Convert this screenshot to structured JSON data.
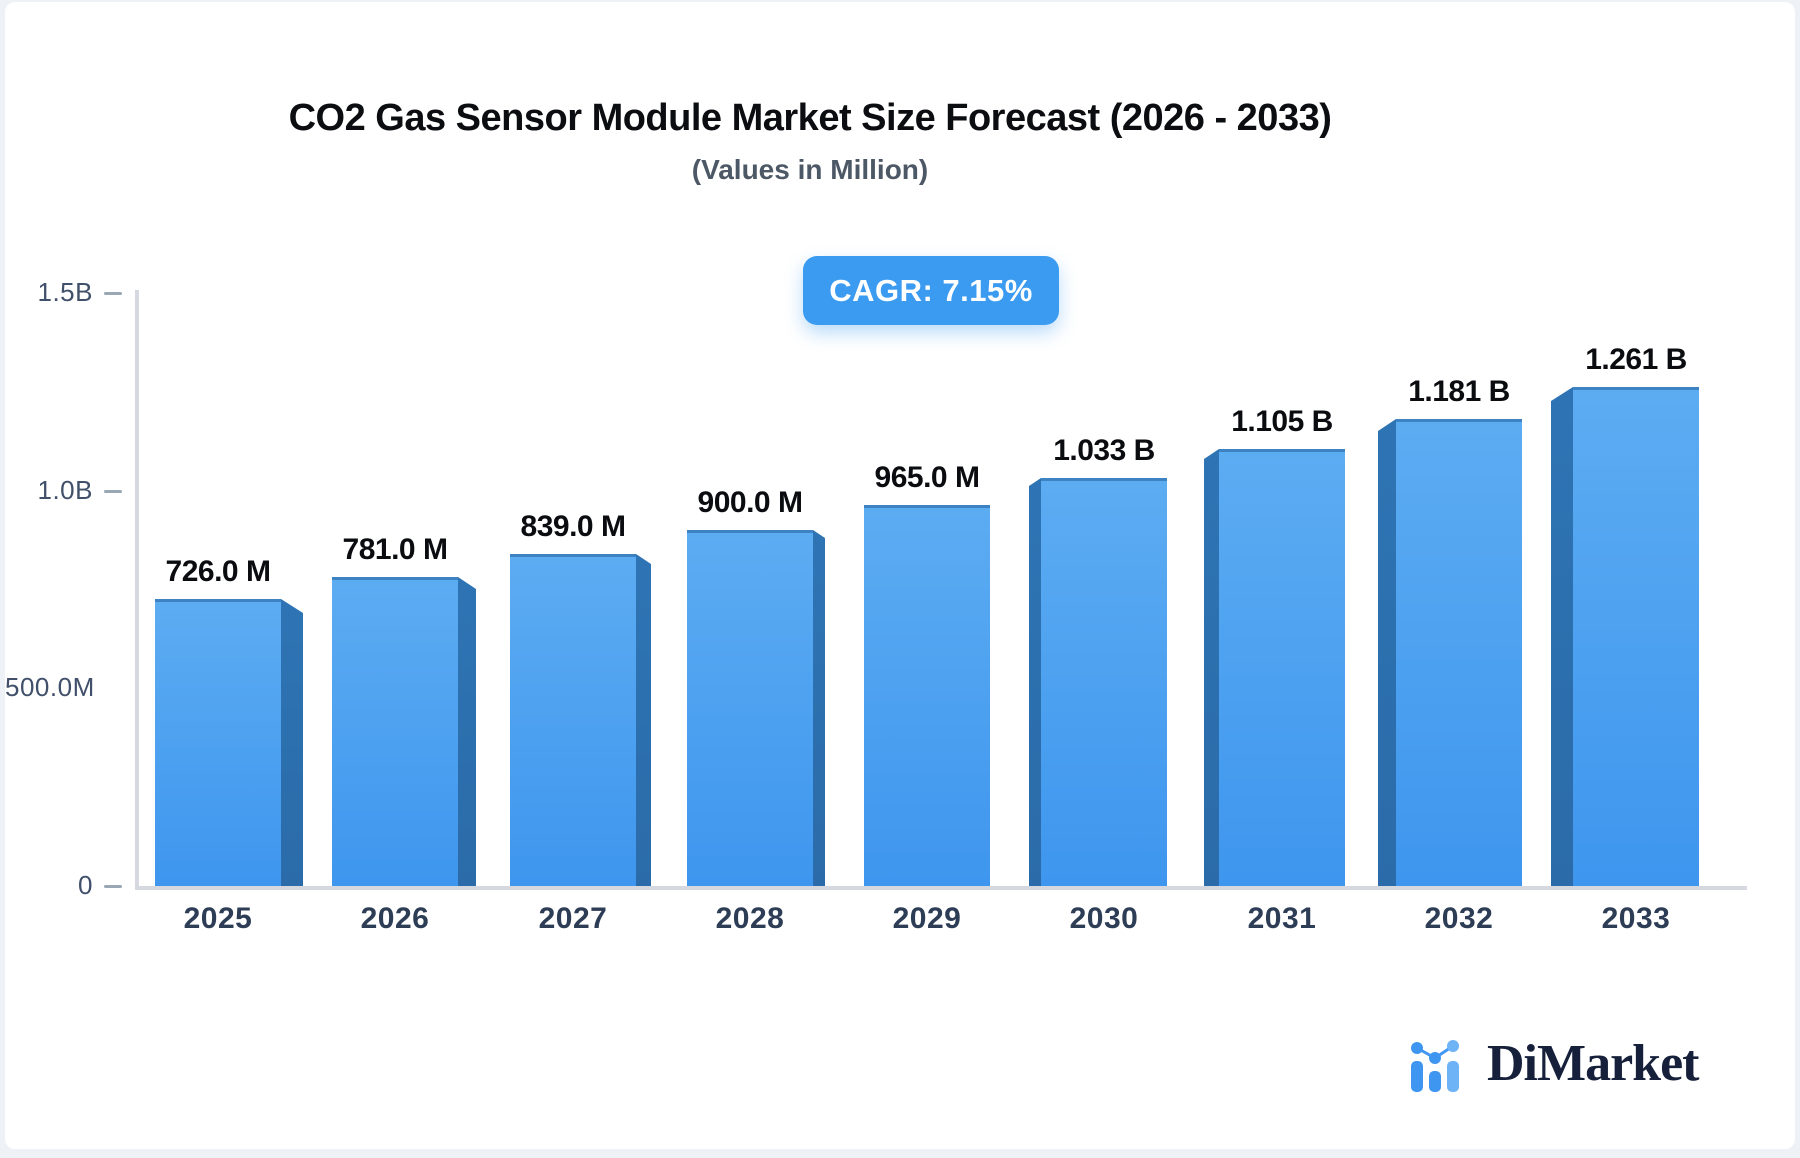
{
  "header": {
    "title": "CO2 Gas Sensor Module Market Size Forecast (2026 - 2033)",
    "subtitle": "(Values in Million)"
  },
  "badge": {
    "label": "CAGR: 7.15%",
    "background": "#3b9bf1",
    "text_color": "#ffffff"
  },
  "chart_data": {
    "type": "bar",
    "title": "CO2 Gas Sensor Module Market Size Forecast (2026 - 2033)",
    "subtitle": "(Values in Million)",
    "cagr": "7.15%",
    "categories": [
      "2025",
      "2026",
      "2027",
      "2028",
      "2029",
      "2030",
      "2031",
      "2032",
      "2033"
    ],
    "values_millions": [
      726,
      781,
      839,
      900,
      965,
      1033,
      1105,
      1181,
      1261
    ],
    "value_labels": [
      "726.0 M",
      "781.0 M",
      "839.0 M",
      "900.0 M",
      "965.0 M",
      "1.033 B",
      "1.105 B",
      "1.181 B",
      "1.261 B"
    ],
    "xlabel": "",
    "ylabel": "",
    "ylim_millions": [
      0,
      1500
    ],
    "grid": false,
    "legend": false,
    "y_ticks": [
      {
        "label": "0",
        "value": 0,
        "dash": true
      },
      {
        "label": "500.0M",
        "value": 500,
        "dash": false
      },
      {
        "label": "1.0B",
        "value": 1000,
        "dash": true
      },
      {
        "label": "1.5B",
        "value": 1500,
        "dash": true
      }
    ],
    "colors": {
      "bar_front_top": "#5cacf2",
      "bar_front_bottom": "#3e96ee",
      "bar_top_edge": "#3d82c3",
      "bar_side_face": "#2e74b4",
      "axis": "#d5d8de",
      "accent": "#3b9bf1"
    }
  },
  "footer": {
    "brand": "DiMarket"
  }
}
